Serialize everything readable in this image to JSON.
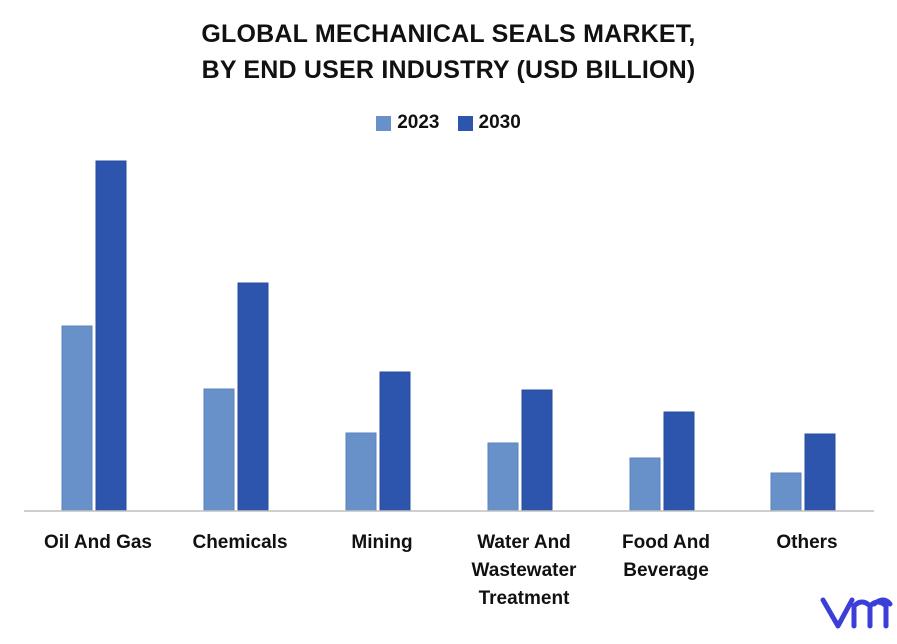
{
  "chart_data": {
    "type": "bar",
    "title": "GLOBAL MECHANICAL SEALS MARKET,",
    "subtitle": "BY END USER INDUSTRY (USD BILLION)",
    "categories": [
      [
        "Oil And Gas"
      ],
      [
        "Chemicals"
      ],
      [
        "Mining"
      ],
      [
        "Water And",
        "Wastewater",
        "Treatment"
      ],
      [
        "Food And",
        "Beverage"
      ],
      [
        "Others"
      ]
    ],
    "series": [
      {
        "name": "2023",
        "color": "#6991C9",
        "values": [
          1.85,
          1.22,
          0.78,
          0.68,
          0.53,
          0.38
        ]
      },
      {
        "name": "2030",
        "color": "#2E55AE",
        "values": [
          3.5,
          2.28,
          1.39,
          1.21,
          0.99,
          0.77
        ]
      }
    ],
    "ylim": [
      0,
      3.5
    ],
    "grid": false,
    "legend_position": "top"
  },
  "branding": {
    "logo_icon": "vmr-logo-icon",
    "logo_color": "#3B3FD8"
  }
}
